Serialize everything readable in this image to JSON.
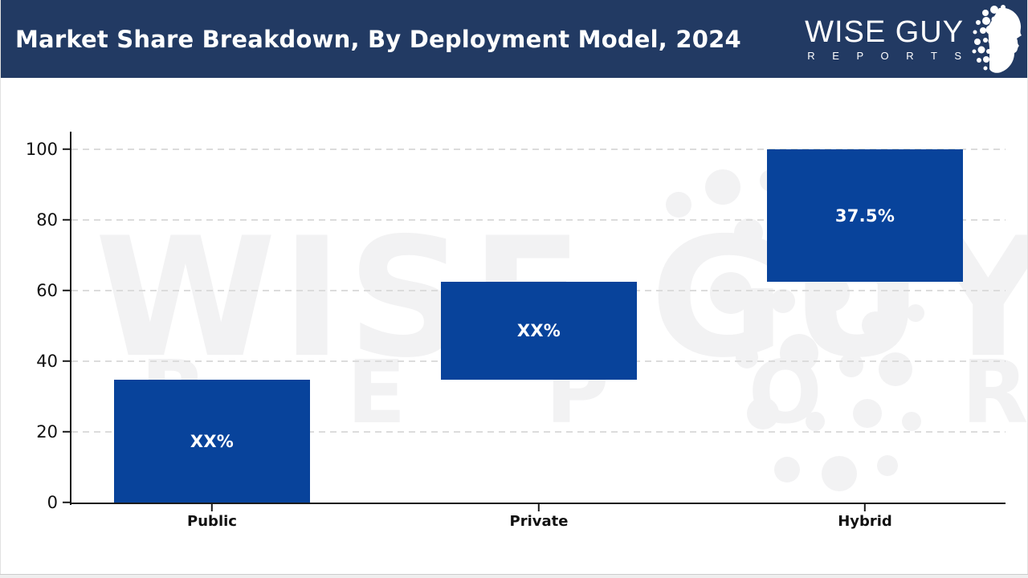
{
  "header": {
    "title": "Market Share Breakdown, By Deployment Model, 2024",
    "logo": {
      "line1": "WISE GUY",
      "line2": "R E P O R T S"
    }
  },
  "watermark": {
    "line1": "WISE GUY",
    "line2": "R E P O R T S"
  },
  "colors": {
    "header_bg": "#223A63",
    "bar": "#08439B",
    "grid": "#DCDCDC",
    "axis": "#1A1A1A",
    "value_label": "#FFFFFF",
    "watermark": "#F2F2F3"
  },
  "chart_data": {
    "type": "bar",
    "subtype": "floating-waterfall",
    "title": "Market Share Breakdown, By Deployment Model, 2024",
    "categories": [
      "Public",
      "Private",
      "Hybrid"
    ],
    "segments": [
      {
        "category": "Public",
        "start": 0,
        "end": 34.7,
        "label": "XX%"
      },
      {
        "category": "Private",
        "start": 34.7,
        "end": 62.5,
        "label": "XX%"
      },
      {
        "category": "Hybrid",
        "start": 62.5,
        "end": 100,
        "label": "37.5%"
      }
    ],
    "xlabel": "",
    "ylabel": "",
    "yticks": [
      0,
      20,
      40,
      60,
      80,
      100
    ],
    "ylim": [
      0,
      105
    ],
    "grid": "horizontal-dashed",
    "legend": "none",
    "bar_color": "#08439B"
  }
}
